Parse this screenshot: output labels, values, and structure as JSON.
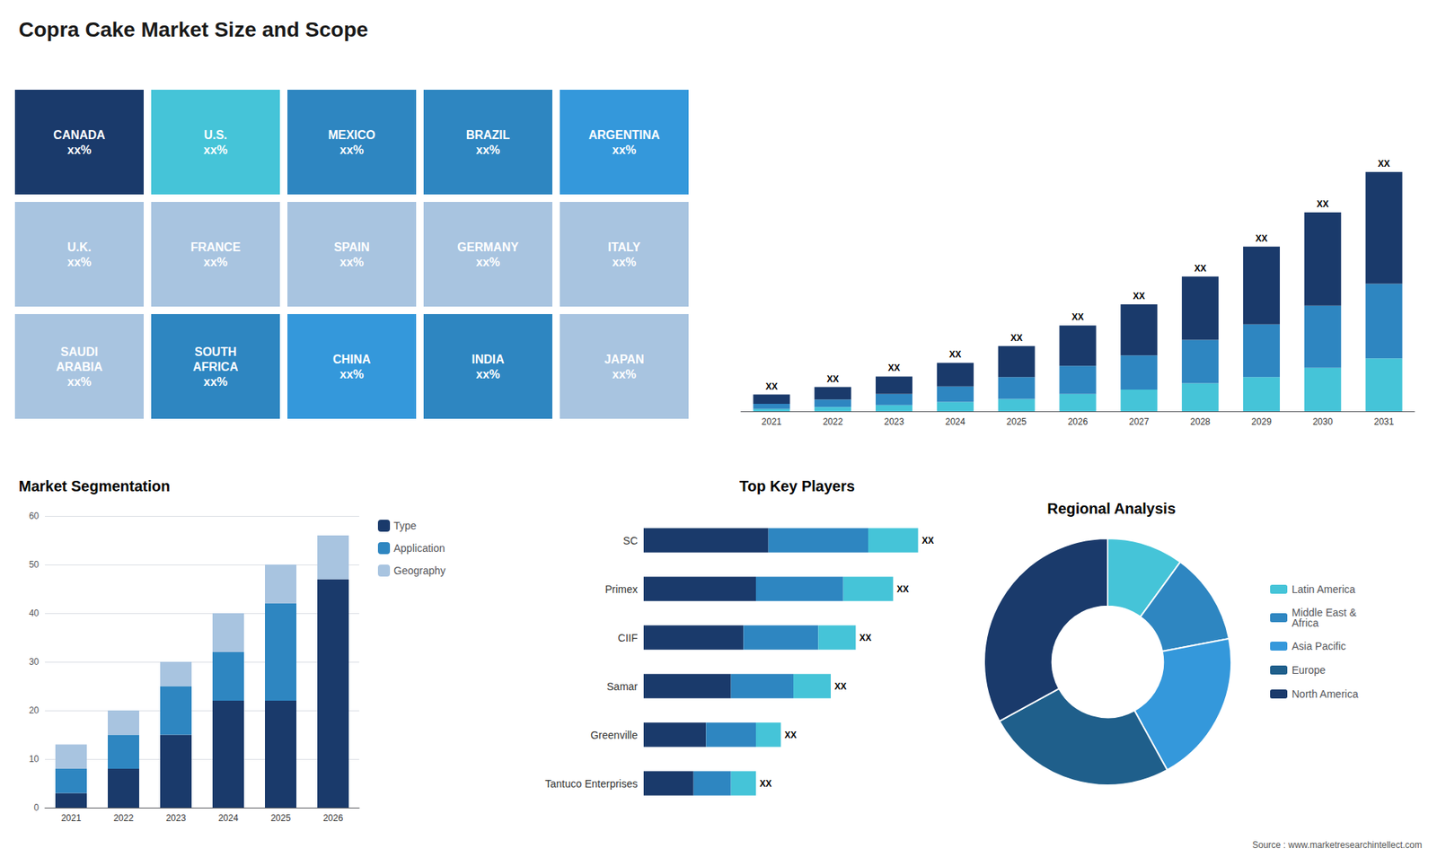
{
  "title": "Copra Cake Market Size and Scope",
  "annotations": [
    "Source : www.marketresearchintellect.com"
  ],
  "chart_data": [
    {
      "type": "map",
      "annotations": [
        "CANADA\nxx%",
        "U.S.\nxx%",
        "MEXICO\nxx%",
        "BRAZIL\nxx%",
        "ARGENTINA\nxx%",
        "U.K.\nxx%",
        "FRANCE\nxx%",
        "SPAIN\nxx%",
        "GERMANY\nxx%",
        "ITALY\nxx%",
        "SAUDI\nARABIA\nxx%",
        "SOUTH\nAFRICA\nxx%",
        "CHINA\nxx%",
        "INDIA\nxx%",
        "JAPAN\nxx%"
      ],
      "colors": [
        "#1a3a6b",
        "#45c4d8",
        "#2e86c1",
        "#2e86c1",
        "#3498db",
        "#a8c4e0",
        "#a8c4e0",
        "#a8c4e0",
        "#a8c4e0",
        "#a8c4e0",
        "#a8c4e0",
        "#2e86c1",
        "#3498db",
        "#2e86c1",
        "#a8c4e0"
      ]
    },
    {
      "type": "bar",
      "categories": [
        "2021",
        "2022",
        "2023",
        "2024",
        "2025",
        "2026",
        "2027",
        "2028",
        "2029",
        "2030",
        "2031"
      ],
      "series": [
        {
          "color": "#45c4d8",
          "values": [
            0.4,
            0.7,
            1.0,
            1.5,
            2.0,
            2.8,
            3.5,
            4.5,
            5.5,
            7.0,
            8.5
          ]
        },
        {
          "color": "#2e86c1",
          "values": [
            0.8,
            1.2,
            1.8,
            2.5,
            3.5,
            4.5,
            5.5,
            7.0,
            8.5,
            10.0,
            12.0
          ]
        },
        {
          "color": "#1a3a6b",
          "values": [
            1.5,
            2.0,
            2.8,
            3.8,
            5.0,
            6.5,
            8.2,
            10.2,
            12.5,
            15.0,
            18.0
          ],
          "value_labels": [
            "XX",
            "XX",
            "XX",
            "XX",
            "XX",
            "XX",
            "XX",
            "XX",
            "XX",
            "XX",
            "XX"
          ]
        }
      ],
      "stacked": true,
      "ylim": [
        0,
        48.125
      ],
      "tick_labels": "x",
      "grid": false
    },
    {
      "type": "bar",
      "title": "Market Segmentation",
      "categories": [
        "2021",
        "2022",
        "2023",
        "2024",
        "2025",
        "2026"
      ],
      "series": [
        {
          "name": "Type",
          "color": "#1a3a6b",
          "values": [
            3,
            8,
            15,
            22,
            22,
            47
          ]
        },
        {
          "name": "Application",
          "color": "#2e86c1",
          "values": [
            5,
            7,
            10,
            10,
            20,
            0
          ]
        },
        {
          "name": "Geography",
          "color": "#a8c4e0",
          "values": [
            5,
            5,
            5,
            8,
            8,
            9
          ]
        }
      ],
      "stacked": true,
      "ylim": [
        0,
        60
      ],
      "yticks": [
        0,
        10,
        20,
        30,
        40,
        50,
        60
      ],
      "grid": true,
      "legend": "upper right"
    },
    {
      "type": "bar",
      "title": "Top Key Players",
      "orientation": "horizontal",
      "categories": [
        "SC",
        "Primex",
        "CIIF",
        "Samar",
        "Greenville",
        "Tantuco Enterprises"
      ],
      "series": [
        {
          "color": "#1a3a6b",
          "values": [
            5,
            4.5,
            4,
            3.5,
            2.5,
            2
          ]
        },
        {
          "color": "#2e86c1",
          "values": [
            4,
            3.5,
            3,
            2.5,
            2,
            1.5
          ]
        },
        {
          "color": "#45c4d8",
          "values": [
            2,
            2,
            1.5,
            1.5,
            1,
            1
          ],
          "value_labels": [
            "XX",
            "XX",
            "XX",
            "XX",
            "XX",
            "XX"
          ]
        }
      ],
      "stacked": true,
      "xlim": [
        0,
        12
      ],
      "tick_labels": "y",
      "grid": false
    },
    {
      "type": "pie",
      "title": "Regional Analysis",
      "categories": [
        "Latin America",
        "Middle East &\nAfrica",
        "Asia Pacific",
        "Europe",
        "North America"
      ],
      "values": [
        10,
        12,
        20,
        25,
        33
      ],
      "colors": [
        "#45c4d8",
        "#2e86c1",
        "#3498db",
        "#1f5f8b",
        "#1a3a6b"
      ],
      "legend": "right"
    }
  ]
}
